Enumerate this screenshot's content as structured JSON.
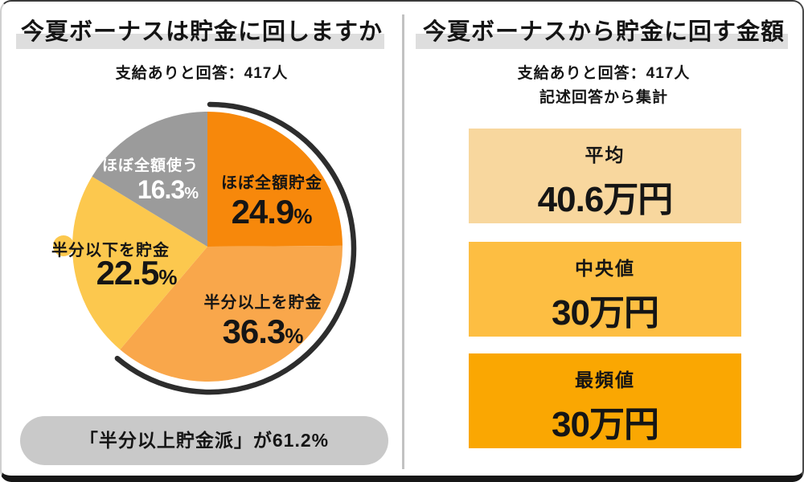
{
  "left_panel": {
    "title": "今夏ボーナスは貯金に回しますか",
    "subtitle": "支給ありと回答：417人",
    "footer_note": "「半分以上貯金派」が61.2%"
  },
  "right_panel": {
    "title": "今夏ボーナスから貯金に回す金額",
    "subtitle_line1": "支給ありと回答：417人",
    "subtitle_line2": "記述回答から集計",
    "stats": [
      {
        "label": "平均",
        "value": "40.6万円",
        "color": "#F8D79E"
      },
      {
        "label": "中央値",
        "value": "30万円",
        "color": "#FDBE42"
      },
      {
        "label": "最頻値",
        "value": "30万円",
        "color": "#FAA702"
      }
    ]
  },
  "chart_data": {
    "type": "pie",
    "title": "今夏ボーナスは貯金に回しますか",
    "sample_note": "支給ありと回答：417人",
    "direction": "clockwise",
    "start_angle_deg": 0,
    "percent_symbol": "%",
    "segments": [
      {
        "label": "ほぼ全額貯金",
        "value": 24.9,
        "number": "24.9",
        "color": "#F7880B"
      },
      {
        "label": "半分以上を貯金",
        "value": 36.3,
        "number": "36.3",
        "color": "#F9A74B"
      },
      {
        "label": "半分以下を貯金",
        "value": 22.5,
        "number": "22.5",
        "color": "#FCC84E"
      },
      {
        "label": "ほぼ全額使う",
        "value": 16.3,
        "number": "16.3",
        "color": "#9B9B9B"
      }
    ],
    "annotation": "「半分以上貯金派」が61.2%",
    "decor": {
      "arc_color": "#2d2d2d",
      "arc_sweep_deg": 220
    }
  }
}
